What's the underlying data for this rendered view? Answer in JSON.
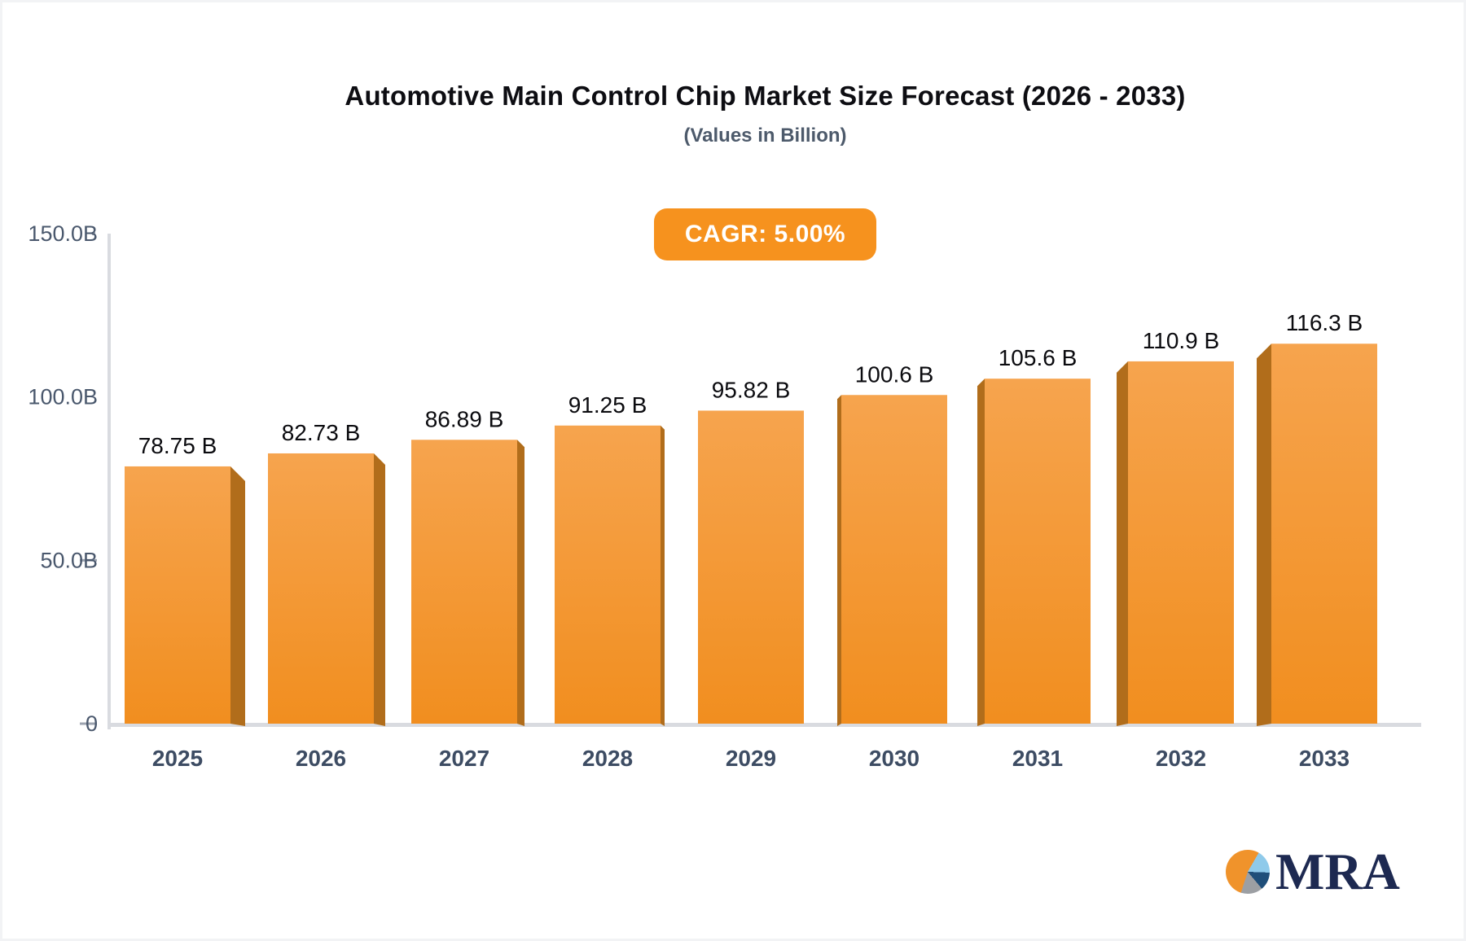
{
  "header": {
    "title": "Automotive Main Control Chip Market Size Forecast (2026 - 2033)",
    "subtitle": "(Values in Billion)",
    "cagr_badge": "CAGR: 5.00%"
  },
  "chart_data": {
    "type": "bar",
    "title": "Automotive Main Control Chip Market Size Forecast (2026 - 2033)",
    "subtitle": "(Values in Billion)",
    "categories": [
      "2025",
      "2026",
      "2027",
      "2028",
      "2029",
      "2030",
      "2031",
      "2032",
      "2033"
    ],
    "values": [
      78.75,
      82.73,
      86.89,
      91.25,
      95.82,
      100.6,
      105.6,
      110.9,
      116.3
    ],
    "value_labels": [
      "78.75 B",
      "82.73 B",
      "86.89 B",
      "91.25 B",
      "95.82 B",
      "100.6 B",
      "105.6 B",
      "110.9 B",
      "116.3 B"
    ],
    "y_ticks": [
      {
        "label": "150.0B",
        "value": 150,
        "tick": "dot"
      },
      {
        "label": "100.0B",
        "value": 100,
        "tick": "none"
      },
      {
        "label": "50.0B",
        "value": 50,
        "tick": "dash"
      },
      {
        "label": "0",
        "value": 0,
        "tick": "dash"
      }
    ],
    "ylim": [
      0,
      150
    ],
    "xlabel": "",
    "ylabel": "",
    "legend": "none",
    "grid": "off",
    "colors": {
      "bar_top": "#F6A44E",
      "bar_bottom": "#F18E1F",
      "bar_side": "#B16D1B",
      "axis_line": "#D9DBE0",
      "tick_mark": "#9CA3AF",
      "value_label": "#0B0B0F",
      "x_label": "#3D4C63",
      "y_label": "#4A586D"
    }
  },
  "logo": {
    "text": "MRA",
    "pie_icon": "pie-chart-icon",
    "pie_colors": {
      "orange": "#F0932B",
      "light_blue": "#8FCAEA",
      "navy": "#1F4E79",
      "gray": "#9C9FA3"
    },
    "text_color": "#1D2951"
  }
}
